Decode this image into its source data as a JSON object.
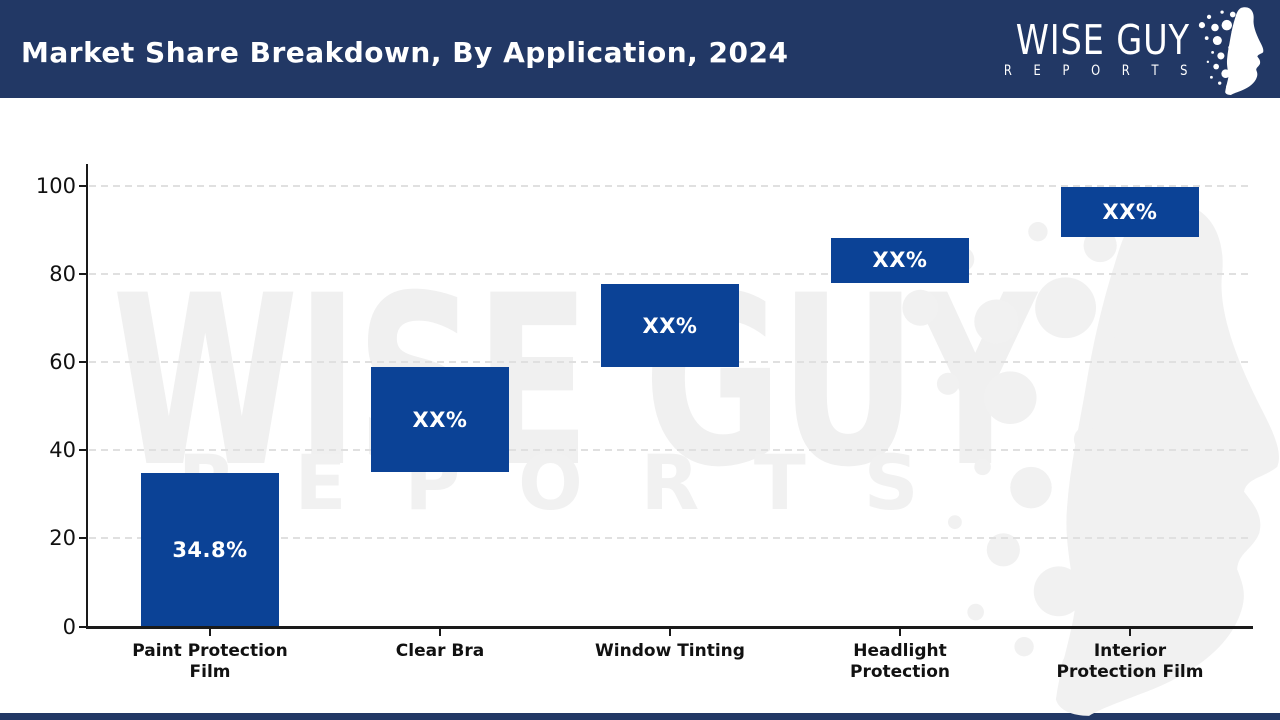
{
  "header": {
    "title": "Market Share Breakdown, By Application, 2024",
    "bg_color": "#223865",
    "logo": {
      "brand_line1": "WISE GUY",
      "brand_line2": "R E P O R T S"
    }
  },
  "watermark": {
    "line1": "WISE GUY",
    "line2": "REPORTS"
  },
  "chart_data": {
    "type": "bar",
    "subtype": "waterfall",
    "title": "Market Share Breakdown, By Application, 2024",
    "categories": [
      "Paint Protection Film",
      "Clear Bra",
      "Window Tinting",
      "Headlight Protection",
      "Interior Protection Film"
    ],
    "category_label_lines": [
      [
        "Paint Protection",
        "Film"
      ],
      [
        "Clear Bra"
      ],
      [
        "Window Tinting"
      ],
      [
        "Headlight",
        "Protection"
      ],
      [
        "Interior",
        "Protection Film"
      ]
    ],
    "segments": [
      {
        "category": "Paint Protection Film",
        "start": 0,
        "end": 34.8,
        "label": "34.8%"
      },
      {
        "category": "Clear Bra",
        "start": 35,
        "end": 58.9,
        "label": "XX%"
      },
      {
        "category": "Window Tinting",
        "start": 58.9,
        "end": 77.7,
        "label": "XX%"
      },
      {
        "category": "Headlight Protection",
        "start": 78,
        "end": 88.2,
        "label": "XX%"
      },
      {
        "category": "Interior Protection Film",
        "start": 88.4,
        "end": 99.8,
        "label": "XX%"
      }
    ],
    "y_ticks": [
      0,
      20,
      40,
      60,
      80,
      100
    ],
    "ylim": [
      0,
      105
    ],
    "xlabel": "",
    "ylabel": "",
    "grid": "horizontal-dashed",
    "legend": "none",
    "bar_color": "#0b4296",
    "bar_label_color": "#ffffff"
  },
  "footer": {
    "bg_color": "#223865"
  }
}
